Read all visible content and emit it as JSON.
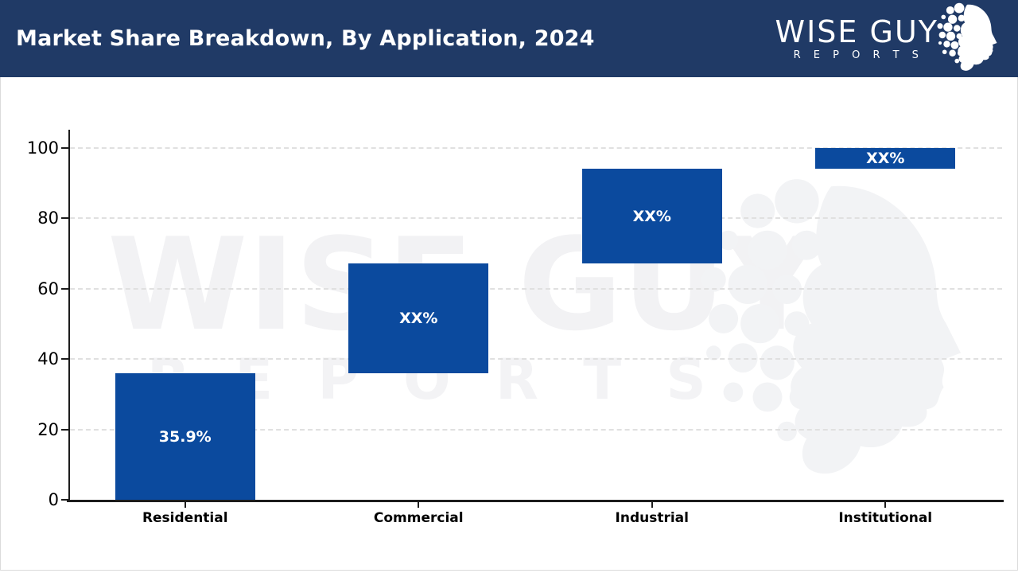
{
  "header": {
    "title": "Market Share Breakdown, By Application, 2024",
    "bg_color": "#203a66",
    "logo": {
      "brand_line1": "WISE GUY",
      "brand_line2": "R E P O R T S",
      "head_icon": "dotted-head-profile-icon"
    }
  },
  "watermark": {
    "brand_line1": "WISE GUY",
    "brand_line2": "R E P O R T S",
    "head_icon": "dotted-head-profile-icon"
  },
  "chart_data": {
    "type": "bar",
    "subtype": "waterfall",
    "title": "Market Share Breakdown, By Application, 2024",
    "categories": [
      "Residential",
      "Commercial",
      "Industrial",
      "Institutional"
    ],
    "segments": [
      {
        "category": "Residential",
        "start": 0,
        "end": 35.9,
        "label": "35.9%"
      },
      {
        "category": "Commercial",
        "start": 35.9,
        "end": 67.2,
        "label": "XX%"
      },
      {
        "category": "Industrial",
        "start": 67.2,
        "end": 94.1,
        "label": "XX%"
      },
      {
        "category": "Institutional",
        "start": 94.1,
        "end": 100,
        "label": "XX%"
      }
    ],
    "yticks": [
      0,
      20,
      40,
      60,
      80,
      100
    ],
    "ylim": [
      0,
      100
    ],
    "xlabel": "",
    "ylabel": "",
    "grid": "dashed-horizontal",
    "legend": "none",
    "bar_color": "#0b4a9e",
    "bar_label_color": "#ffffff",
    "axis_color": "#1c1c1c",
    "grid_color": "#e0e0e0"
  }
}
